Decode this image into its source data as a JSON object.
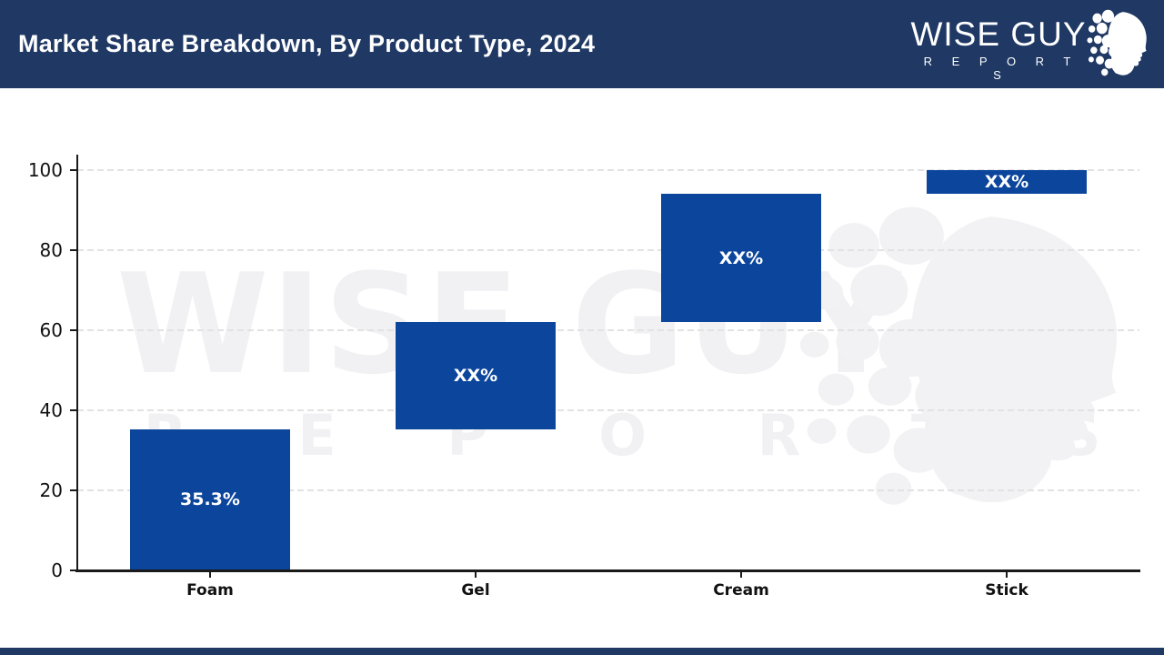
{
  "header": {
    "title": "Market Share Breakdown, By Product Type, 2024",
    "bg_color": "#1f3864",
    "logo": {
      "line1": "WISE GUY",
      "line2": "R E P O R T S"
    }
  },
  "watermark": {
    "line1": "WISE GUY",
    "line2": "R E P O R T S"
  },
  "chart_data": {
    "type": "bar",
    "subtype": "waterfall",
    "title": "Market Share Breakdown, By Product Type, 2024",
    "xlabel": "",
    "ylabel": "",
    "categories": [
      "Foam",
      "Gel",
      "Cream",
      "Stick"
    ],
    "series": [
      {
        "name": "Market Share",
        "segments": [
          {
            "category": "Foam",
            "start": 0,
            "end": 35.3,
            "label": "35.3%"
          },
          {
            "category": "Gel",
            "start": 35.3,
            "end": 62,
            "label": "XX%"
          },
          {
            "category": "Cream",
            "start": 62,
            "end": 94,
            "label": "XX%"
          },
          {
            "category": "Stick",
            "start": 94,
            "end": 100,
            "label": "XX%"
          }
        ]
      }
    ],
    "ylim": [
      0,
      100
    ],
    "yticks": [
      0,
      20,
      40,
      60,
      80,
      100
    ],
    "grid": "horizontal dashed",
    "legend": "none",
    "bar_color": "#0c459c",
    "bar_label_color": "#ffffff"
  }
}
